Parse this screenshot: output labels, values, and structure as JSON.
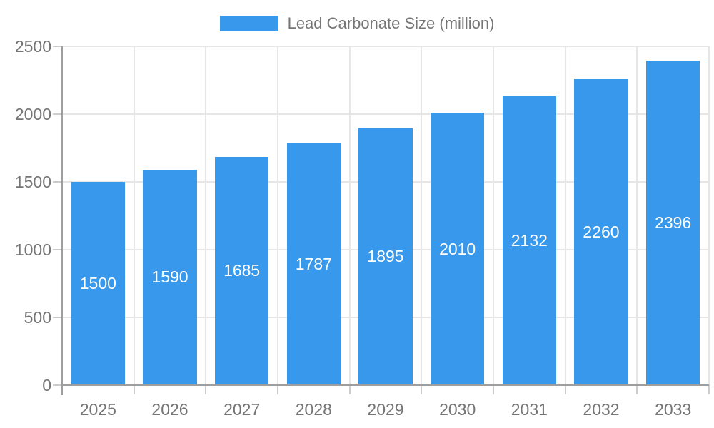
{
  "chart_data": {
    "type": "bar",
    "title": "Lead Carbonate Size (million)",
    "categories": [
      "2025",
      "2026",
      "2027",
      "2028",
      "2029",
      "2030",
      "2031",
      "2032",
      "2033"
    ],
    "series": [
      {
        "name": "Lead Carbonate Size (million)",
        "values": [
          1500,
          1590,
          1685,
          1787,
          1895,
          2010,
          2132,
          2260,
          2396
        ]
      }
    ],
    "bar_value_labels": [
      "1500",
      "1590",
      "1685",
      "1787",
      "1895",
      "2010",
      "2132",
      "2260",
      "2396"
    ],
    "xlabel": "",
    "ylabel": "",
    "ylim": [
      0,
      2500
    ],
    "yticks": [
      0,
      500,
      1000,
      1500,
      2000,
      2500
    ],
    "ytick_labels": [
      "0",
      "500",
      "1000",
      "1500",
      "2000",
      "2500"
    ],
    "grid": true,
    "legend_position": "top-center"
  },
  "colors": {
    "bar": "#3899EC",
    "grid_light": "#E6E6E6",
    "axis": "#9E9E9E",
    "tick": "#CCCCCC",
    "text_gray": "#757575",
    "bar_label": "#FFFFFF",
    "background": "#FFFFFF"
  }
}
